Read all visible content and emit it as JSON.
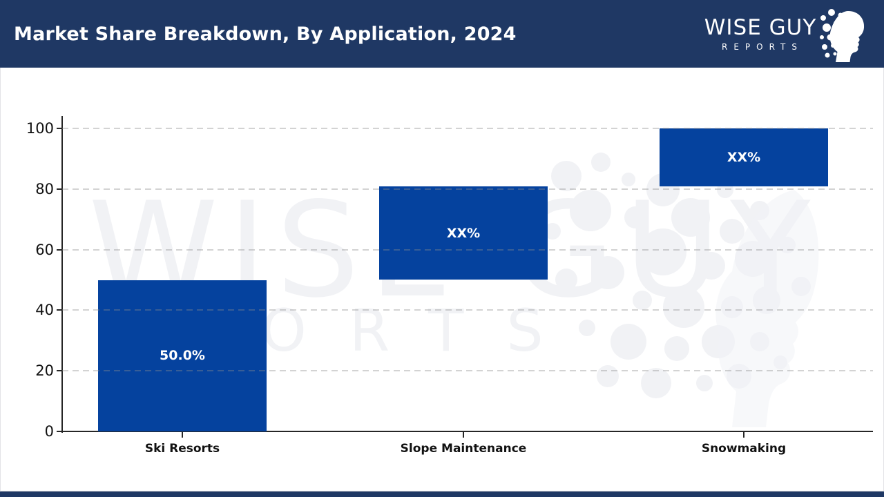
{
  "header": {
    "title": "Market Share Breakdown, By Application, 2024",
    "bg_color": "#1f3864",
    "logo": {
      "line1": "WISE GUY",
      "line2": "REPORTS"
    }
  },
  "watermark": {
    "line1": "WISE GUY",
    "line2": "EPORTS"
  },
  "chart_data": {
    "type": "bar",
    "subtype": "waterfall-breakdown",
    "title": "Market Share Breakdown, By Application, 2024",
    "categories": [
      "Ski Resorts",
      "Slope Maintenance",
      "Snowmaking"
    ],
    "series": [
      {
        "name": "Market Share %",
        "values": [
          50.0,
          30.8,
          19.2
        ]
      }
    ],
    "segment_ranges": [
      [
        0,
        50.0
      ],
      [
        50.0,
        80.8
      ],
      [
        80.8,
        100
      ]
    ],
    "bar_labels": [
      "50.0%",
      "XX%",
      "XX%"
    ],
    "yticks": [
      0,
      20,
      40,
      60,
      80,
      100
    ],
    "ylim": [
      0,
      103
    ],
    "xlabel": "",
    "ylabel": "",
    "grid": "horizontal-dashed-over-bars",
    "legend": "none",
    "bar_color": "#05429e",
    "bar_label_color": "#ffffff",
    "grid_color": "#d8d8d8",
    "axis_color": "#262626"
  }
}
